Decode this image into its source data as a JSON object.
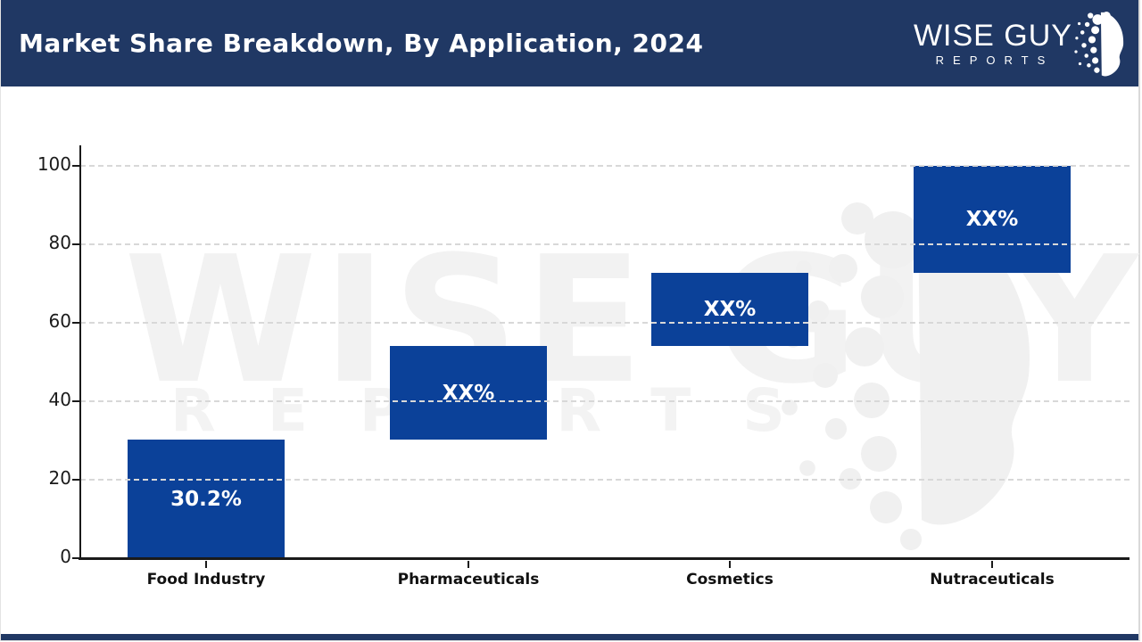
{
  "header": {
    "title": "Market Share Breakdown, By Application, 2024",
    "logo_line1": "WISE GUY",
    "logo_line2": "REPORTS",
    "bg_color": "#203864"
  },
  "watermark": {
    "line1": "WISE GUY",
    "line2": "REPORTS"
  },
  "chart_data": {
    "type": "bar",
    "subtype": "waterfall",
    "title": "Market Share Breakdown, By Application, 2024",
    "categories": [
      "Food Industry",
      "Pharmaceuticals",
      "Cosmetics",
      "Nutraceuticals"
    ],
    "segments": [
      {
        "category": "Food Industry",
        "start": 0,
        "end": 30.2,
        "label": "30.2%"
      },
      {
        "category": "Pharmaceuticals",
        "start": 30.2,
        "end": 54.0,
        "label": "XX%"
      },
      {
        "category": "Cosmetics",
        "start": 54.0,
        "end": 72.8,
        "label": "XX%"
      },
      {
        "category": "Nutraceuticals",
        "start": 72.8,
        "end": 100,
        "label": "XX%"
      }
    ],
    "y_ticks": [
      0,
      20,
      40,
      60,
      80,
      100
    ],
    "ylim": [
      0,
      105
    ],
    "xlabel": "",
    "ylabel": "",
    "bar_color": "#0b4199",
    "bar_label_color": "#ffffff",
    "grid": "horizontal-dashed",
    "legend": "none"
  }
}
